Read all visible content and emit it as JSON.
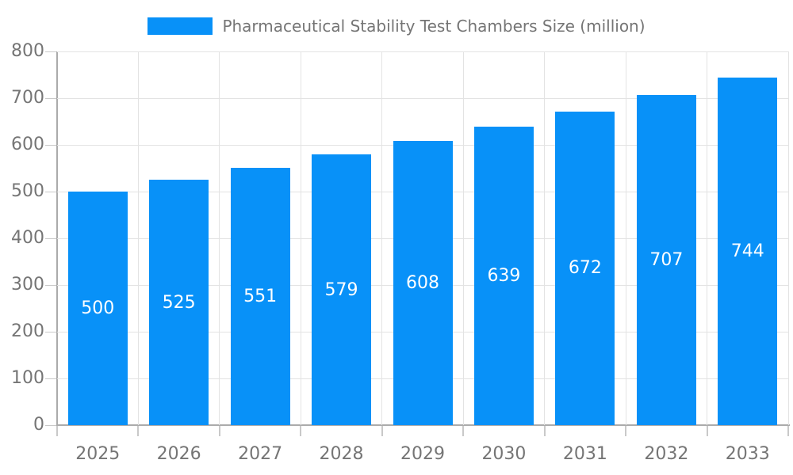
{
  "legend": {
    "label": "Pharmaceutical Stability Test Chambers Size (million)",
    "swatch_color": "#0891F8"
  },
  "chart_data": {
    "type": "bar",
    "title": "Pharmaceutical Stability Test Chambers Size (million)",
    "categories": [
      "2025",
      "2026",
      "2027",
      "2028",
      "2029",
      "2030",
      "2031",
      "2032",
      "2033"
    ],
    "values": [
      500,
      525,
      551,
      579,
      608,
      639,
      672,
      707,
      744
    ],
    "xlabel": "",
    "ylabel": "",
    "ylim": [
      0,
      800
    ],
    "yticks": [
      0,
      100,
      200,
      300,
      400,
      500,
      600,
      700,
      800
    ],
    "grid": true,
    "legend_position": "top",
    "bar_color": "#0891F8",
    "bar_label_color": "#FFFFFF",
    "axis_text_color": "#757575",
    "gridline_color": "#E3E3E3",
    "axis_line_color": "#ABABAB"
  }
}
